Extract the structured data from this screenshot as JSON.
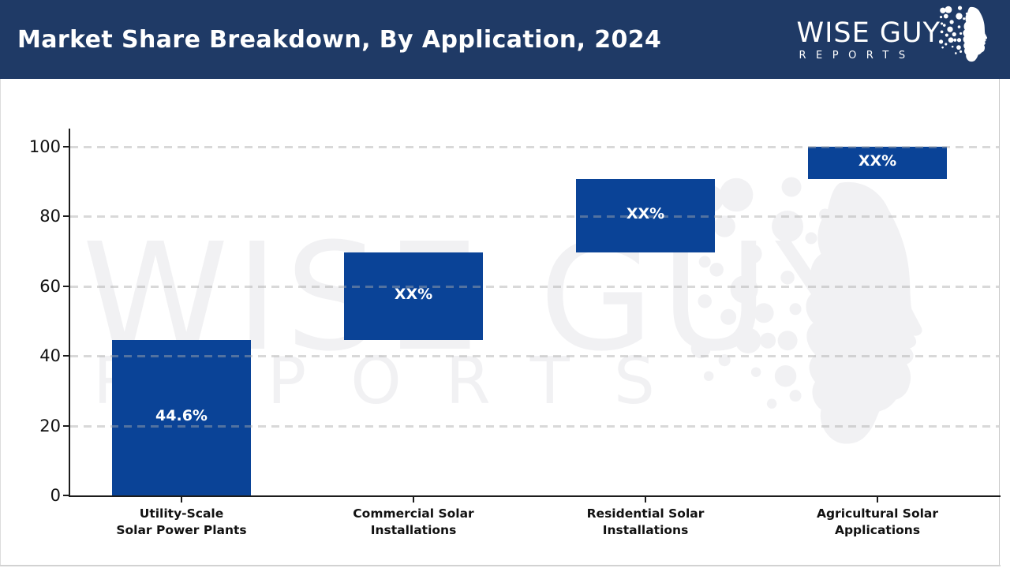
{
  "header": {
    "title": "Market Share Breakdown, By Application, 2024",
    "logo": {
      "brand": "WISE GUY",
      "sub": "REPORTS"
    }
  },
  "watermark": {
    "line1": "WISE GUY",
    "line2": "REPORTS"
  },
  "chart_data": {
    "type": "bar",
    "variant": "waterfall",
    "title": "Market Share Breakdown, By Application, 2024",
    "xlabel": "",
    "ylabel": "",
    "ylim": [
      0,
      100
    ],
    "yticks": [
      0,
      20,
      40,
      60,
      80,
      100
    ],
    "grid": "horizontal-dashed",
    "legend": "none",
    "bar_color": "#0a4397",
    "bar_label_color": "#ffffff",
    "categories": [
      "Utility-Scale Solar Power Plants",
      "Commercial Solar Installations",
      "Residential Solar Installations",
      "Agricultural Solar Applications"
    ],
    "category_lines": [
      [
        "Utility-Scale",
        "Solar Power Plants"
      ],
      [
        "Commercial Solar",
        "Installations"
      ],
      [
        "Residential Solar",
        "Installations"
      ],
      [
        "Agricultural Solar",
        "Applications"
      ]
    ],
    "bars": [
      {
        "category": "Utility-Scale Solar Power Plants",
        "from": 0,
        "to": 44.6,
        "label": "44.6%"
      },
      {
        "category": "Commercial Solar Installations",
        "from": 44.6,
        "to": 69.7,
        "label": "XX%"
      },
      {
        "category": "Residential Solar Installations",
        "from": 69.7,
        "to": 90.8,
        "label": "XX%"
      },
      {
        "category": "Agricultural Solar Applications",
        "from": 90.8,
        "to": 100,
        "label": "XX%"
      }
    ]
  }
}
